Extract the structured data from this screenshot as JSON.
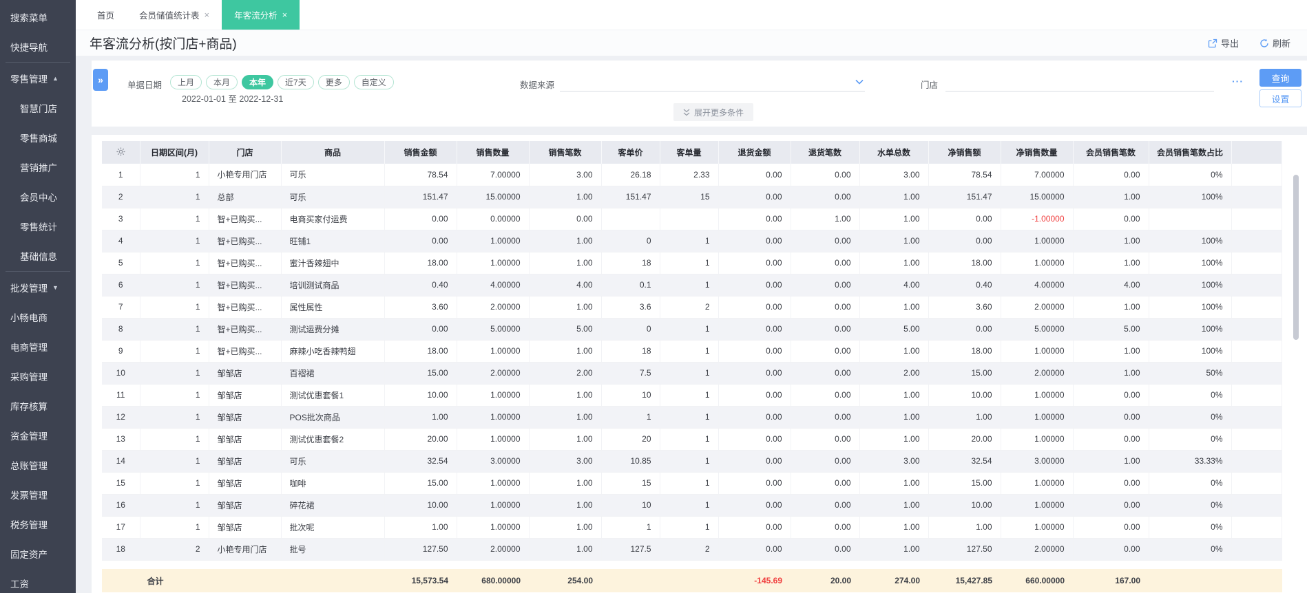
{
  "colors": {
    "accent_blue": "#5d9cf5",
    "accent_green": "#3ec7a0",
    "negative_red": "#f03e3e",
    "totals_bg": "#fdf3dd",
    "sidebar_bg": "#3d4250"
  },
  "glyphs": {
    "collapse": "»",
    "close": "×",
    "arrow_up": "▲",
    "arrow_down": "▼",
    "dots": "···"
  },
  "sidebar": {
    "items": [
      {
        "label": "搜索菜单",
        "type": "top"
      },
      {
        "label": "快捷导航",
        "type": "top"
      },
      {
        "label": "零售管理",
        "type": "top",
        "arrow": "up",
        "divider_above": true
      },
      {
        "label": "智慧门店",
        "type": "sub"
      },
      {
        "label": "零售商城",
        "type": "sub"
      },
      {
        "label": "营销推广",
        "type": "sub"
      },
      {
        "label": "会员中心",
        "type": "sub"
      },
      {
        "label": "零售统计",
        "type": "sub"
      },
      {
        "label": "基础信息",
        "type": "sub"
      },
      {
        "label": "批发管理",
        "type": "top",
        "arrow": "down",
        "divider_above": true
      },
      {
        "label": "小畅电商",
        "type": "top"
      },
      {
        "label": "电商管理",
        "type": "top"
      },
      {
        "label": "采购管理",
        "type": "top"
      },
      {
        "label": "库存核算",
        "type": "top"
      },
      {
        "label": "资金管理",
        "type": "top"
      },
      {
        "label": "总账管理",
        "type": "top"
      },
      {
        "label": "发票管理",
        "type": "top"
      },
      {
        "label": "税务管理",
        "type": "top"
      },
      {
        "label": "固定资产",
        "type": "top"
      },
      {
        "label": "工资",
        "type": "top"
      }
    ]
  },
  "tabs": [
    {
      "label": "首页",
      "closable": false,
      "active": false
    },
    {
      "label": "会员储值统计表",
      "closable": true,
      "active": false
    },
    {
      "label": "年客流分析",
      "closable": true,
      "active": true
    }
  ],
  "header": {
    "title": "年客流分析(按门店+商品)",
    "export_label": "导出",
    "refresh_label": "刷新"
  },
  "filters": {
    "date_label": "单据日期",
    "date_pills": [
      {
        "label": "上月",
        "active": false
      },
      {
        "label": "本月",
        "active": false
      },
      {
        "label": "本年",
        "active": true
      },
      {
        "label": "近7天",
        "active": false
      },
      {
        "label": "更多",
        "active": false
      },
      {
        "label": "自定义",
        "active": false
      }
    ],
    "date_range": "2022-01-01 至 2022-12-31",
    "datasource_label": "数据来源",
    "datasource_value": "",
    "store_label": "门店",
    "store_value": "",
    "query_label": "查询",
    "settings_label": "设置",
    "expand_more_label": "展开更多条件"
  },
  "table": {
    "columns": [
      "日期区间(月)",
      "门店",
      "商品",
      "销售金额",
      "销售数量",
      "销售笔数",
      "客单价",
      "客单量",
      "退货金额",
      "退货笔数",
      "水单总数",
      "净销售额",
      "净销售数量",
      "会员销售笔数",
      "会员销售笔数占比"
    ],
    "rows": [
      [
        "1",
        "1",
        "小艳专用门店",
        "可乐",
        "78.54",
        "7.00000",
        "3.00",
        "26.18",
        "2.33",
        "0.00",
        "0.00",
        "3.00",
        "78.54",
        "7.00000",
        "0.00",
        "0%"
      ],
      [
        "2",
        "1",
        "总部",
        "可乐",
        "151.47",
        "15.00000",
        "1.00",
        "151.47",
        "15",
        "0.00",
        "0.00",
        "1.00",
        "151.47",
        "15.00000",
        "1.00",
        "100%"
      ],
      [
        "3",
        "1",
        "智+已购买...",
        "电商买家付运费",
        "0.00",
        "0.00000",
        "0.00",
        "",
        "",
        "0.00",
        "1.00",
        "1.00",
        "0.00",
        "-1.00000",
        "0.00",
        ""
      ],
      [
        "4",
        "1",
        "智+已购买...",
        "旺铺1",
        "0.00",
        "1.00000",
        "1.00",
        "0",
        "1",
        "0.00",
        "0.00",
        "1.00",
        "0.00",
        "1.00000",
        "1.00",
        "100%"
      ],
      [
        "5",
        "1",
        "智+已购买...",
        "蜜汁香辣翅中",
        "18.00",
        "1.00000",
        "1.00",
        "18",
        "1",
        "0.00",
        "0.00",
        "1.00",
        "18.00",
        "1.00000",
        "1.00",
        "100%"
      ],
      [
        "6",
        "1",
        "智+已购买...",
        "培训测试商品",
        "0.40",
        "4.00000",
        "4.00",
        "0.1",
        "1",
        "0.00",
        "0.00",
        "4.00",
        "0.40",
        "4.00000",
        "4.00",
        "100%"
      ],
      [
        "7",
        "1",
        "智+已购买...",
        "属性属性",
        "3.60",
        "2.00000",
        "1.00",
        "3.6",
        "2",
        "0.00",
        "0.00",
        "1.00",
        "3.60",
        "2.00000",
        "1.00",
        "100%"
      ],
      [
        "8",
        "1",
        "智+已购买...",
        "测试运费分摊",
        "0.00",
        "5.00000",
        "5.00",
        "0",
        "1",
        "0.00",
        "0.00",
        "5.00",
        "0.00",
        "5.00000",
        "5.00",
        "100%"
      ],
      [
        "9",
        "1",
        "智+已购买...",
        "麻辣小吃香辣鸭翅",
        "18.00",
        "1.00000",
        "1.00",
        "18",
        "1",
        "0.00",
        "0.00",
        "1.00",
        "18.00",
        "1.00000",
        "1.00",
        "100%"
      ],
      [
        "10",
        "1",
        "邹邹店",
        "百褶裙",
        "15.00",
        "2.00000",
        "2.00",
        "7.5",
        "1",
        "0.00",
        "0.00",
        "2.00",
        "15.00",
        "2.00000",
        "1.00",
        "50%"
      ],
      [
        "11",
        "1",
        "邹邹店",
        "测试优惠套餐1",
        "10.00",
        "1.00000",
        "1.00",
        "10",
        "1",
        "0.00",
        "0.00",
        "1.00",
        "10.00",
        "1.00000",
        "0.00",
        "0%"
      ],
      [
        "12",
        "1",
        "邹邹店",
        "POS批次商品",
        "1.00",
        "1.00000",
        "1.00",
        "1",
        "1",
        "0.00",
        "0.00",
        "1.00",
        "1.00",
        "1.00000",
        "0.00",
        "0%"
      ],
      [
        "13",
        "1",
        "邹邹店",
        "测试优惠套餐2",
        "20.00",
        "1.00000",
        "1.00",
        "20",
        "1",
        "0.00",
        "0.00",
        "1.00",
        "20.00",
        "1.00000",
        "0.00",
        "0%"
      ],
      [
        "14",
        "1",
        "邹邹店",
        "可乐",
        "32.54",
        "3.00000",
        "3.00",
        "10.85",
        "1",
        "0.00",
        "0.00",
        "3.00",
        "32.54",
        "3.00000",
        "1.00",
        "33.33%"
      ],
      [
        "15",
        "1",
        "邹邹店",
        "咖啡",
        "15.00",
        "1.00000",
        "1.00",
        "15",
        "1",
        "0.00",
        "0.00",
        "1.00",
        "15.00",
        "1.00000",
        "0.00",
        "0%"
      ],
      [
        "16",
        "1",
        "邹邹店",
        "碎花裙",
        "10.00",
        "1.00000",
        "1.00",
        "10",
        "1",
        "0.00",
        "0.00",
        "1.00",
        "10.00",
        "1.00000",
        "0.00",
        "0%"
      ],
      [
        "17",
        "1",
        "邹邹店",
        "批次呢",
        "1.00",
        "1.00000",
        "1.00",
        "1",
        "1",
        "0.00",
        "0.00",
        "1.00",
        "1.00",
        "1.00000",
        "0.00",
        "0%"
      ],
      [
        "18",
        "2",
        "小艳专用门店",
        "批号",
        "127.50",
        "2.00000",
        "1.00",
        "127.5",
        "2",
        "0.00",
        "0.00",
        "1.00",
        "127.50",
        "2.00000",
        "0.00",
        "0%"
      ]
    ],
    "totals": {
      "label": "合计",
      "values": [
        "",
        "",
        "15,573.54",
        "680.00000",
        "254.00",
        "",
        "",
        "-145.69",
        "20.00",
        "274.00",
        "15,427.85",
        "660.00000",
        "167.00",
        ""
      ]
    }
  }
}
